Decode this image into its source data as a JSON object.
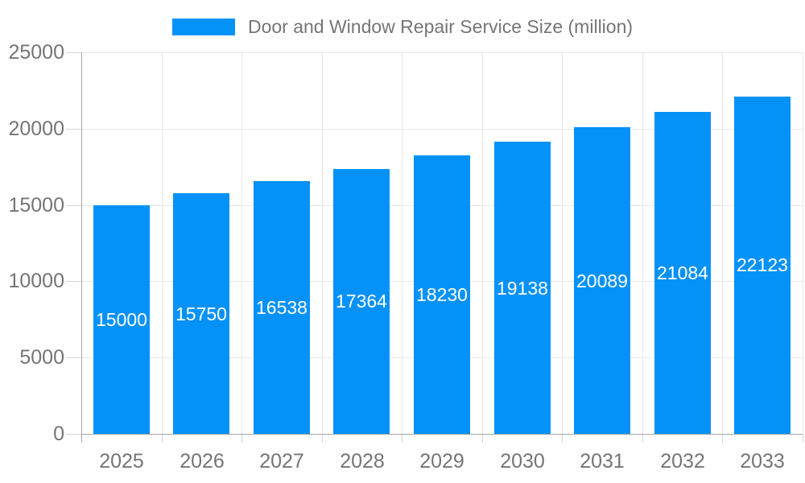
{
  "chart_data": {
    "type": "bar",
    "title": "Door and Window Repair Service Size (million)",
    "categories": [
      "2025",
      "2026",
      "2027",
      "2028",
      "2029",
      "2030",
      "2031",
      "2032",
      "2033"
    ],
    "values": [
      15000,
      15750,
      16538,
      17364,
      18230,
      19138,
      20089,
      21084,
      22123
    ],
    "xlabel": "",
    "ylabel": "",
    "ylim": [
      0,
      25000
    ],
    "yticks": [
      0,
      5000,
      10000,
      15000,
      20000,
      25000
    ],
    "grid": true,
    "legend_position": "top-center",
    "bar_labels_inside": "middle",
    "colors": {
      "bar": "#0592f8",
      "bar_label": "#ffffff",
      "axis": "#a8a8a8",
      "grid": "#e8e8e8",
      "tick": "#d6d6d6",
      "text": "#757575",
      "background": "#ffffff"
    }
  }
}
